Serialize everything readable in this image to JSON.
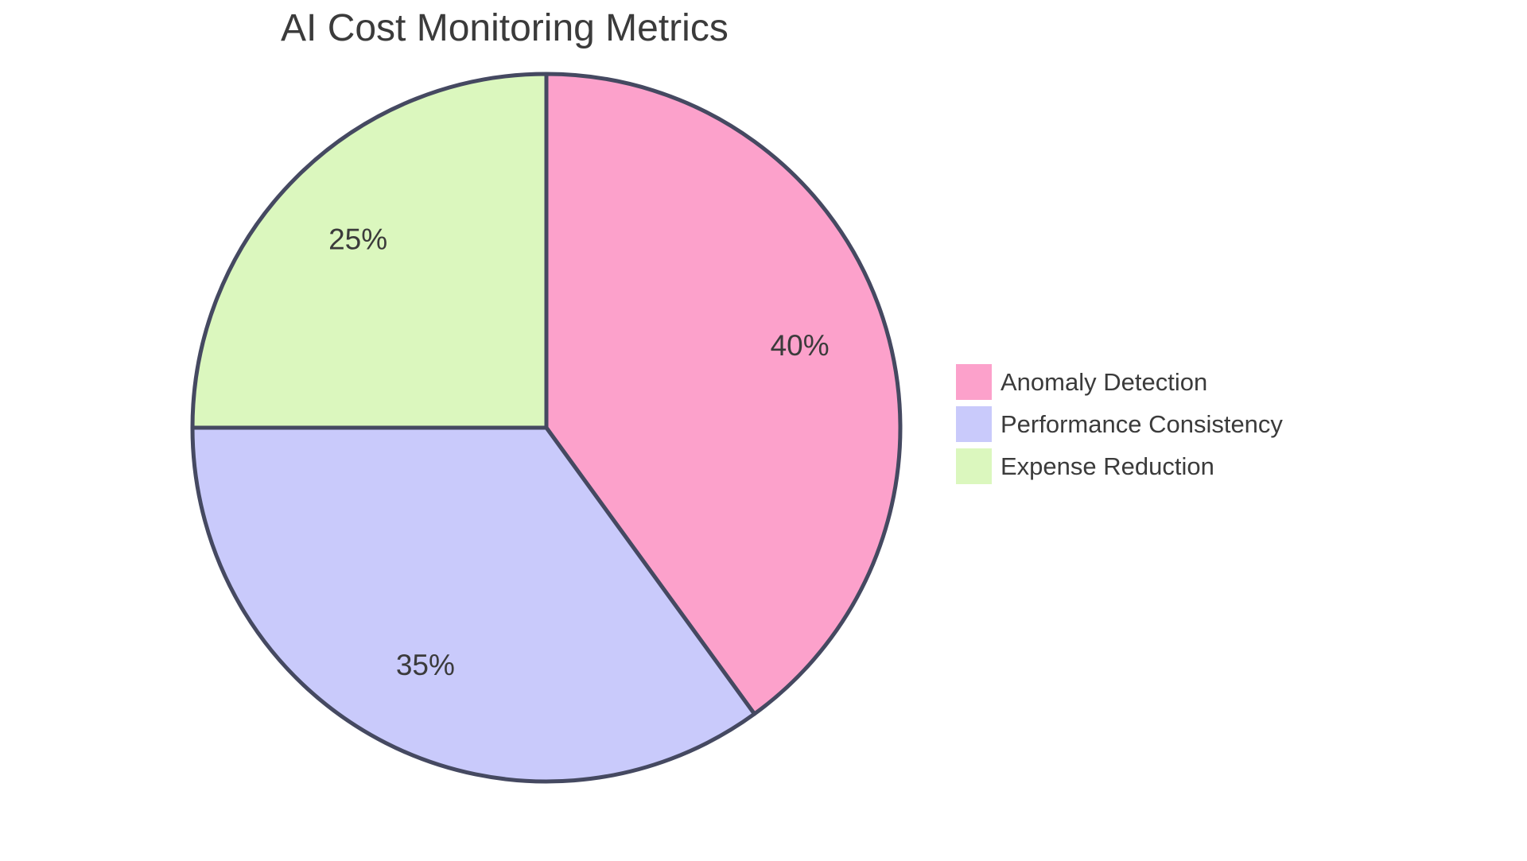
{
  "colors": {
    "background": "#ffffff",
    "text": "#3b3b3b",
    "pie_border": "#454961"
  },
  "chart_data": {
    "type": "pie",
    "title": "AI Cost Monitoring Metrics",
    "start_angle_deg": 0,
    "direction": "clockwise",
    "legend_position": "right",
    "label_format": "percent",
    "slices": [
      {
        "label": "Anomaly Detection",
        "value": 40,
        "display": "40%",
        "color": "#fca1cb"
      },
      {
        "label": "Performance Consistency",
        "value": 35,
        "display": "35%",
        "color": "#c9cafb"
      },
      {
        "label": "Expense Reduction",
        "value": 25,
        "display": "25%",
        "color": "#dbf7be"
      }
    ]
  }
}
